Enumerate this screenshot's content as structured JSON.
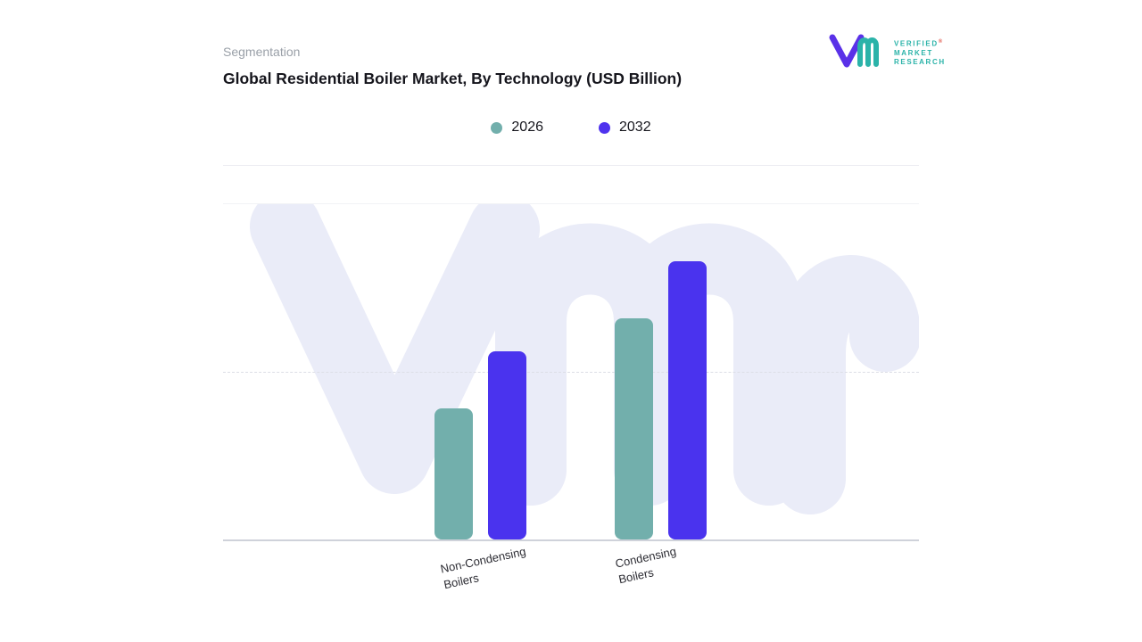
{
  "header": {
    "eyebrow": "Segmentation",
    "title": "Global Residential Boiler Market, By Technology (USD Billion)"
  },
  "logo": {
    "lines": [
      "VERIFIED",
      "MARKET",
      "RESEARCH"
    ],
    "registered": "®",
    "teal": "#2bb3a9",
    "purple": "#5a31e8"
  },
  "legend": {
    "items": [
      {
        "label": "2026",
        "color": "#72afac"
      },
      {
        "label": "2032",
        "color": "#4f33ee"
      }
    ]
  },
  "chart_data": {
    "type": "bar",
    "title": "Global Residential Boiler Market, By Technology (USD Billion)",
    "categories": [
      "Non-Condensing Boilers",
      "Condensing Boilers"
    ],
    "series": [
      {
        "name": "2026",
        "color": "#72afac",
        "values": [
          39,
          66
        ]
      },
      {
        "name": "2032",
        "color": "#4a33ee",
        "values": [
          56,
          83
        ]
      }
    ],
    "xlabel": "",
    "ylabel": "",
    "ylim": [
      0,
      100
    ],
    "units": "USD Billion; no numeric axis shown — values are relative bar heights (% of plot height)",
    "grid": "horizontal dashed",
    "legend_position": "top-center",
    "watermark": "VMr monogram"
  }
}
